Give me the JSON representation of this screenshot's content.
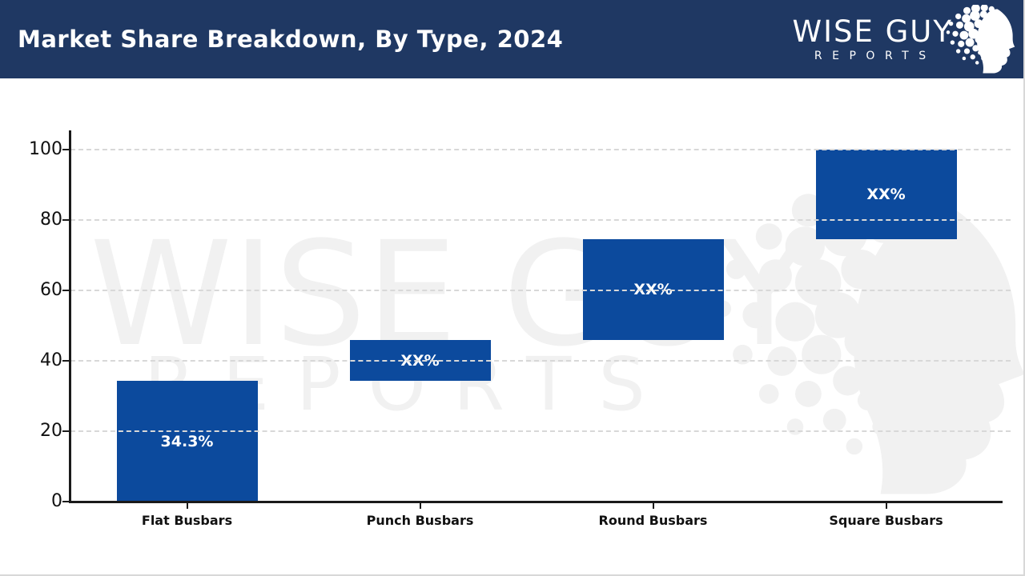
{
  "header": {
    "title": "Market Share Breakdown, By Type, 2024",
    "logo": {
      "line1": "WISE GUY",
      "line2": "REPORTS"
    }
  },
  "watermark": {
    "line1": "WISE GUY",
    "line2": "REPORTS"
  },
  "chart_data": {
    "type": "bar",
    "subtype": "waterfall",
    "title": "Market Share Breakdown, By Type, 2024",
    "categories": [
      "Flat Busbars",
      "Punch Busbars",
      "Round Busbars",
      "Square Busbars"
    ],
    "segments": [
      {
        "category": "Flat Busbars",
        "start": 0,
        "end": 34.3,
        "label": "34.3%"
      },
      {
        "category": "Punch Busbars",
        "start": 34.3,
        "end": 45.9,
        "label": "XX%"
      },
      {
        "category": "Round Busbars",
        "start": 45.9,
        "end": 74.5,
        "label": "XX%"
      },
      {
        "category": "Square Busbars",
        "start": 74.5,
        "end": 100,
        "label": "XX%"
      }
    ],
    "xlabel": "",
    "ylabel": "",
    "ylim": [
      0,
      105
    ],
    "yticks": [
      0,
      20,
      40,
      60,
      80,
      100
    ],
    "grid": "horizontal-dashed-over-bars",
    "legend": "none",
    "bar_color": "#0c4a9d",
    "value_label_color": "#ffffff",
    "axis_color": "#1a1a1a",
    "grid_color": "#d8d8d8"
  },
  "colors": {
    "header_bg": "#1f3863",
    "page_bg": "#ffffff",
    "watermark": "#f1f1f1"
  }
}
